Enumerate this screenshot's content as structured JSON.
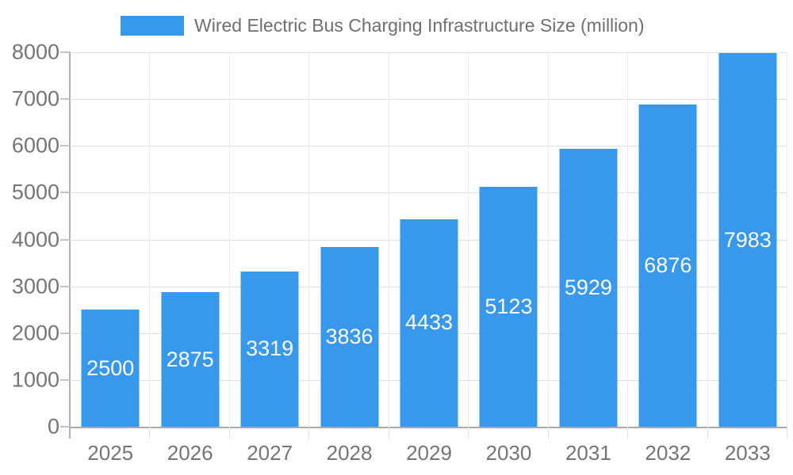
{
  "legend": {
    "label": "Wired Electric Bus Charging Infrastructure Size (million)"
  },
  "chart_data": {
    "type": "bar",
    "title": "Wired Electric Bus Charging Infrastructure Size (million)",
    "categories": [
      "2025",
      "2026",
      "2027",
      "2028",
      "2029",
      "2030",
      "2031",
      "2032",
      "2033"
    ],
    "values": [
      2500,
      2875,
      3319,
      3836,
      4433,
      5123,
      5929,
      6876,
      7983
    ],
    "series": [
      {
        "name": "Wired Electric Bus Charging Infrastructure Size (million)",
        "values": [
          2500,
          2875,
          3319,
          3836,
          4433,
          5123,
          5929,
          6876,
          7983
        ]
      }
    ],
    "xlabel": "",
    "ylabel": "",
    "ylim": [
      0,
      8000
    ],
    "yticks": [
      0,
      1000,
      2000,
      3000,
      4000,
      5000,
      6000,
      7000,
      8000
    ],
    "grid": true,
    "legend_position": "top",
    "value_labels": "inside-center",
    "colors": {
      "bar": "#3898ec",
      "axis_line": "#b0b0b0",
      "grid_line": "#e2e2e2",
      "axis_text": "#757575",
      "title_text": "#6f6f6f",
      "value_text": "#ffffff",
      "background": "#ffffff"
    }
  }
}
